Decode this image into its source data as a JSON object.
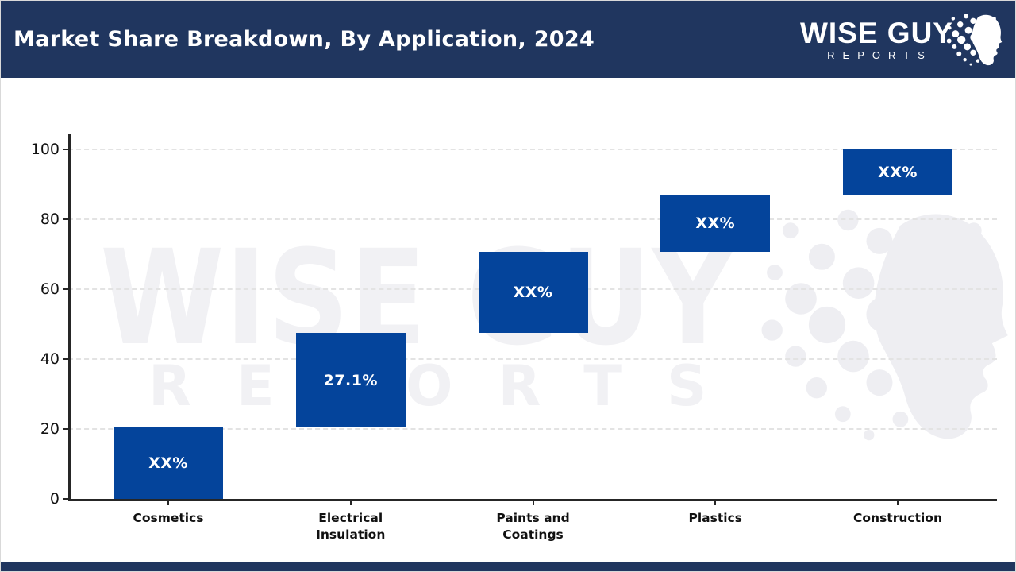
{
  "header": {
    "title": "Market Share Breakdown, By Application, 2024",
    "bg_color": "#20365f",
    "logo": {
      "line1": "WISE GUY",
      "line2": "REPORTS"
    }
  },
  "watermark": {
    "line1": "WISE GUY",
    "line2": "REPORTS",
    "color": "#f1f1f4"
  },
  "footer": {
    "bg_color": "#20365f"
  },
  "colors": {
    "header_bg": "#20365f",
    "bar_blue": "#04449b",
    "axis": "#262626",
    "gridline": "#e3e3e3",
    "tick_text": "#111111",
    "bar_label_text": "#ffffff"
  },
  "chart_data": {
    "type": "bar",
    "subtype": "waterfall (floating cumulative bars)",
    "title": "Market Share Breakdown, By Application, 2024",
    "xlabel": "",
    "ylabel": "",
    "ylim": [
      0,
      100
    ],
    "yticks": [
      0,
      20,
      40,
      60,
      80,
      100
    ],
    "grid": "horizontal dashed",
    "legend": "none",
    "bar_color": "#04449b",
    "categories": [
      "Cosmetics",
      "Electrical Insulation",
      "Paints and Coatings",
      "Plastics",
      "Construction"
    ],
    "bars": [
      {
        "category": "Cosmetics",
        "label": "XX%",
        "base": 0,
        "top": 20.4,
        "tick_lines": [
          "Cosmetics"
        ]
      },
      {
        "category": "Electrical Insulation",
        "label": "27.1%",
        "base": 20.4,
        "top": 47.5,
        "tick_lines": [
          "Electrical",
          "Insulation"
        ]
      },
      {
        "category": "Paints and Coatings",
        "label": "XX%",
        "base": 47.5,
        "top": 70.7,
        "tick_lines": [
          "Paints and",
          "Coatings"
        ]
      },
      {
        "category": "Plastics",
        "label": "XX%",
        "base": 70.7,
        "top": 86.9,
        "tick_lines": [
          "Plastics"
        ]
      },
      {
        "category": "Construction",
        "label": "XX%",
        "base": 86.9,
        "top": 100,
        "tick_lines": [
          "Construction"
        ]
      }
    ]
  }
}
